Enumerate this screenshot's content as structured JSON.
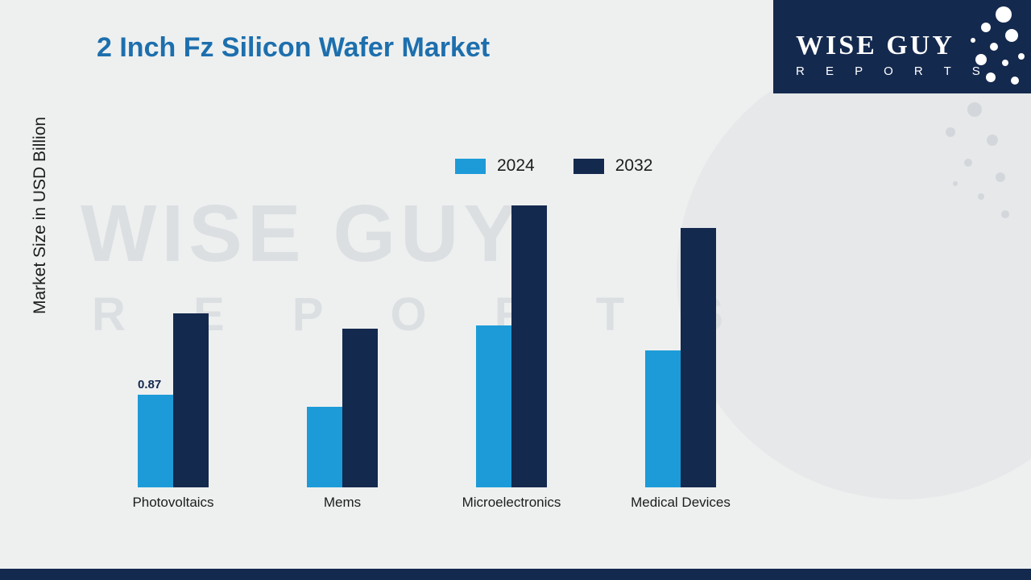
{
  "page": {
    "title": "2 Inch Fz Silicon Wafer Market"
  },
  "logo": {
    "line1": "WISE GUY",
    "line2": "R E P O R T S"
  },
  "watermark": {
    "line1": "WISE GUY",
    "line2": "R E P O R T S"
  },
  "colors": {
    "series_2024": "#1d9bd8",
    "series_2032": "#14294e",
    "title_blue": "#1d6fad",
    "background": "#eef0f0"
  },
  "chart_data": {
    "type": "bar",
    "title": "2 Inch Fz Silicon Wafer Market",
    "xlabel": "",
    "ylabel": "Market Size in USD Billion",
    "categories": [
      "Photovoltaics",
      "Mems",
      "Microelectronics",
      "Medical Devices"
    ],
    "series": [
      {
        "name": "2024",
        "color": "#1d9bd8",
        "values": [
          0.87,
          0.76,
          1.52,
          1.29
        ]
      },
      {
        "name": "2032",
        "color": "#14294e",
        "values": [
          1.64,
          1.49,
          2.65,
          2.44
        ]
      }
    ],
    "annotations": [
      {
        "text": "0.87",
        "category": "Photovoltaics",
        "series": "2024"
      }
    ],
    "ylim": [
      0,
      3
    ],
    "grid": false,
    "legend_position": "top",
    "axes_visible": false
  }
}
